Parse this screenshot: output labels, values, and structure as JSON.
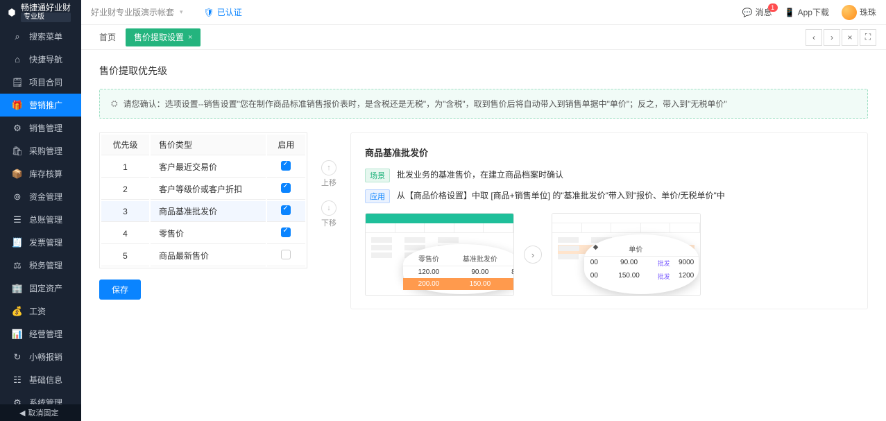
{
  "brand": {
    "name": "畅捷通好业财",
    "edition": "专业版"
  },
  "sidebar": {
    "items": [
      {
        "label": "搜索菜单",
        "icon": "search-icon"
      },
      {
        "label": "快捷导航",
        "icon": "home-icon"
      },
      {
        "label": "项目合同",
        "icon": "clipboard-icon"
      },
      {
        "label": "营销推广",
        "icon": "gift-icon",
        "active": true
      },
      {
        "label": "销售管理",
        "icon": "package-icon"
      },
      {
        "label": "采购管理",
        "icon": "bag-icon"
      },
      {
        "label": "库存核算",
        "icon": "box-icon"
      },
      {
        "label": "资金管理",
        "icon": "coin-icon"
      },
      {
        "label": "总账管理",
        "icon": "ledger-icon"
      },
      {
        "label": "发票管理",
        "icon": "invoice-icon"
      },
      {
        "label": "税务管理",
        "icon": "tax-icon"
      },
      {
        "label": "固定资产",
        "icon": "asset-icon"
      },
      {
        "label": "工资",
        "icon": "salary-icon"
      },
      {
        "label": "经营管理",
        "icon": "manage-icon"
      },
      {
        "label": "小畅报销",
        "icon": "refresh-icon"
      },
      {
        "label": "基础信息",
        "icon": "info-icon"
      },
      {
        "label": "系统管理",
        "icon": "gear-icon"
      }
    ],
    "footer": "取消固定"
  },
  "header": {
    "account_set": "好业财专业版演示帐套",
    "verified": "已认证",
    "messages": {
      "label": "消息",
      "badge": "1"
    },
    "app_download": "App下载",
    "user": "珠珠"
  },
  "tabs": {
    "home": "首页",
    "active": "售价提取设置"
  },
  "page": {
    "title": "售价提取优先级",
    "tip": "请您确认：选项设置--销售设置\"您在制作商品标准销售报价表时，是含税还是无税\"，为\"含税\"，取到售价后将自动带入到销售单据中\"单价\"；反之，带入到\"无税单价\"",
    "columns": {
      "priority": "优先级",
      "type": "售价类型",
      "enable": "启用"
    },
    "rows": [
      {
        "priority": "1",
        "type": "客户最近交易价",
        "enabled": true
      },
      {
        "priority": "2",
        "type": "客户等级价或客户折扣",
        "enabled": true
      },
      {
        "priority": "3",
        "type": "商品基准批发价",
        "enabled": true,
        "selected": true
      },
      {
        "priority": "4",
        "type": "零售价",
        "enabled": true
      },
      {
        "priority": "5",
        "type": "商品最新售价",
        "enabled": false
      }
    ],
    "move_up": "上移",
    "move_down": "下移",
    "save": "保存"
  },
  "detail": {
    "title": "商品基准批发价",
    "scene_label": "场景",
    "scene_text": "批发业务的基准售价，在建立商品档案时确认",
    "apply_label": "应用",
    "apply_text": "从【商品价格设置】中取 [商品+销售单位] 的\"基准批发价\"带入到\"报价、单价/无税单价\"中",
    "popup1": {
      "headers": [
        "零售价",
        "基准批发价",
        ""
      ],
      "row1": [
        "120.00",
        "90.00",
        "8"
      ],
      "row2": [
        "200.00",
        "150.00",
        ""
      ]
    },
    "popup2": {
      "header": "单价",
      "rows": [
        {
          "price": "90.00",
          "tag": "批发",
          "amt": "9000"
        },
        {
          "price": "150.00",
          "tag": "批发",
          "amt": "1200"
        }
      ],
      "left_col": [
        "00",
        "00"
      ]
    }
  },
  "colors": {
    "sidebar_bg": "#1a2332",
    "accent_blue": "#0a84ff",
    "accent_green": "#24b47e",
    "tip_bg": "#f1fbf7",
    "tip_border": "#9fe0c4",
    "highlight_orange": "#ff9a4d"
  }
}
